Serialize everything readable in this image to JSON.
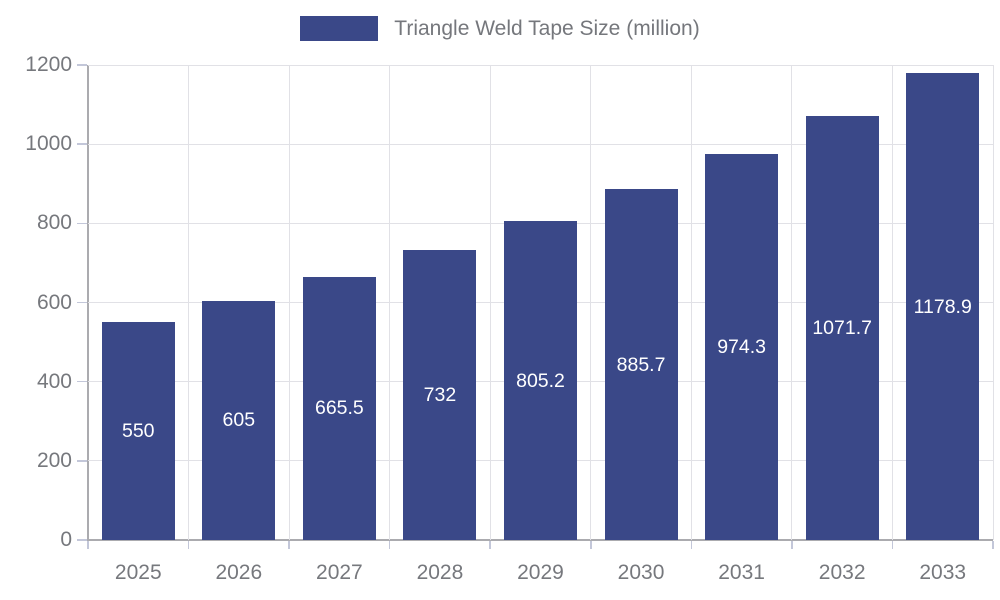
{
  "chart_data": {
    "type": "bar",
    "categories": [
      "2025",
      "2026",
      "2027",
      "2028",
      "2029",
      "2030",
      "2031",
      "2032",
      "2033"
    ],
    "series": [
      {
        "name": "Triangle Weld Tape Size (million)",
        "values": [
          550,
          605,
          665.5,
          732,
          805.2,
          885.7,
          974.3,
          1071.7,
          1178.9
        ]
      }
    ],
    "bar_value_labels": [
      "550",
      "605",
      "665.5",
      "732",
      "805.2",
      "885.7",
      "974.3",
      "1071.7",
      "1178.9"
    ],
    "title": "",
    "xlabel": "",
    "ylabel": "",
    "ylim": [
      0,
      1200
    ],
    "yticks": [
      0,
      200,
      400,
      600,
      800,
      1000,
      1200
    ],
    "grid": true,
    "legend_position": "top-center",
    "colors": {
      "bar": "#3a4888",
      "bar_label": "#ffffff",
      "legend_text": "#75777c",
      "axis_label": "#76787d",
      "axis_line": "#ababaf",
      "gridline": "#e1e1e6",
      "tick": "#c3c7d9",
      "background": "#ffffff"
    }
  }
}
